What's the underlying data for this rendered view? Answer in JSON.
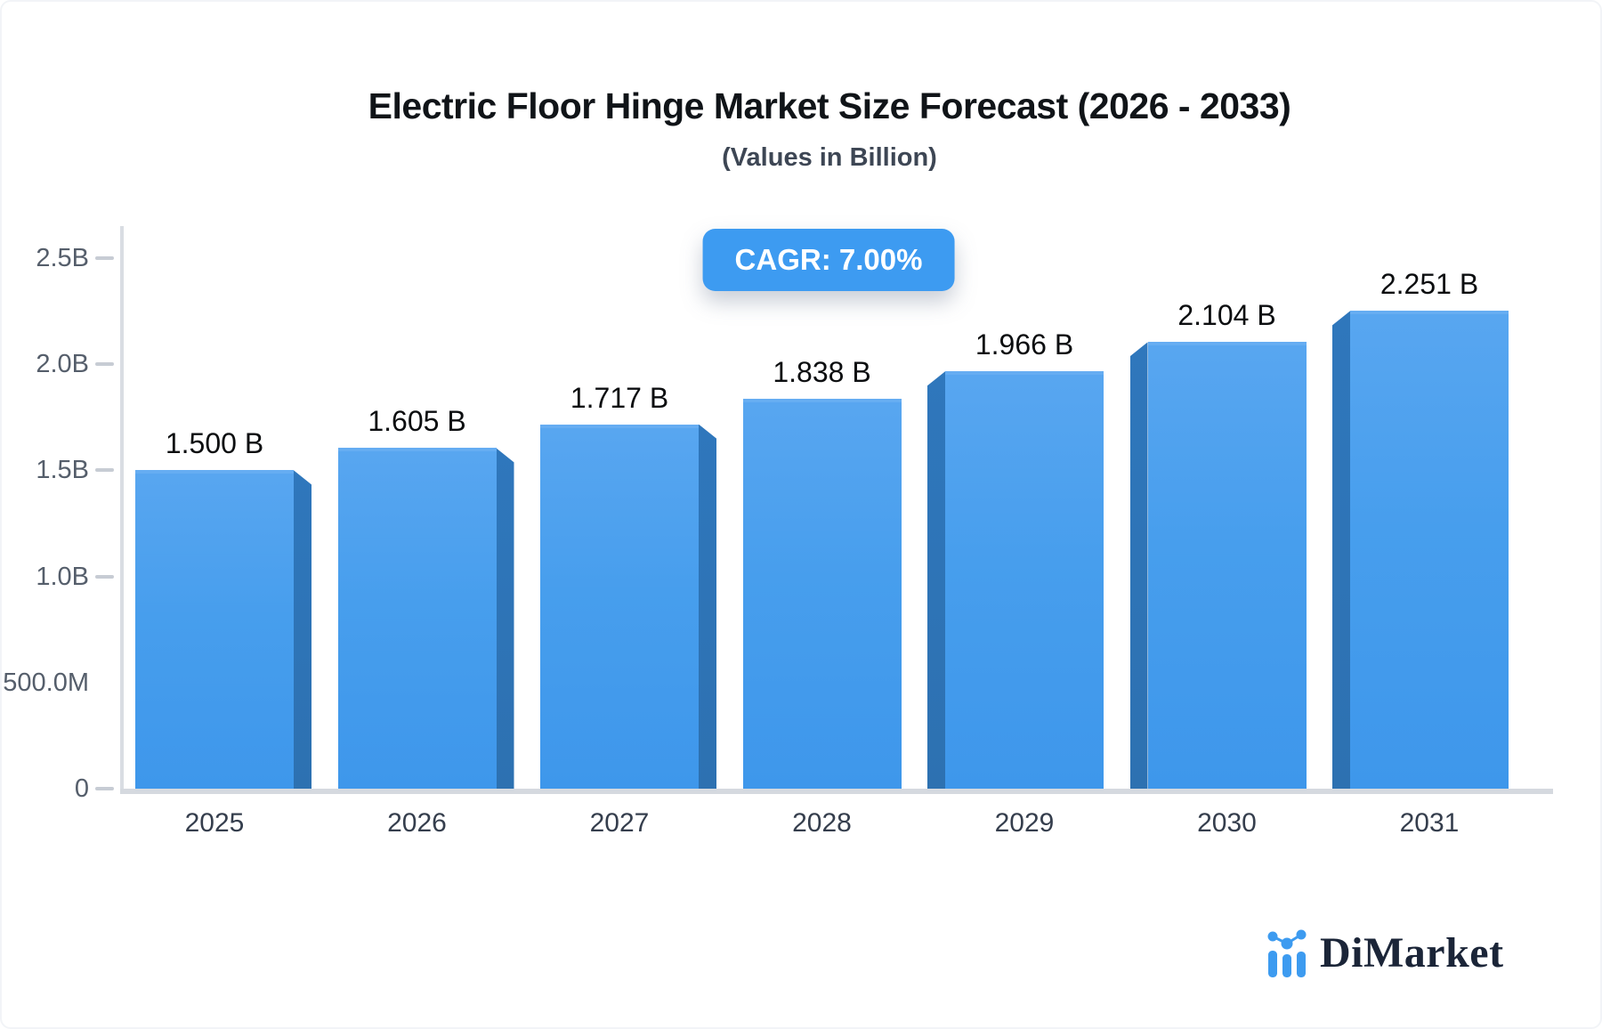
{
  "page": {
    "title": "Electric Floor Hinge Market Size Forecast (2026 - 2033)",
    "subtitle": "(Values in Billion)",
    "cagr_label": "CAGR: 7.00%",
    "brand": {
      "name": "DiMarket"
    }
  },
  "colors": {
    "accent_blue": "#3d9bf1",
    "bar_face_top": "#58a6f0",
    "bar_face_bottom": "#3e97eb",
    "bar_side": "#2e75b9",
    "axis_line": "#d9dde3",
    "tick_dash": "#c7ccd4",
    "title_text": "#101418",
    "subtitle_text": "#3d4654",
    "y_label_text": "#555e6b",
    "x_label_text": "#353e4d",
    "value_label_text": "#0c0e10",
    "logo_navy": "#1b2538",
    "logo_blue": "#3d9bf0"
  },
  "chart_data": {
    "type": "bar",
    "title": "Electric Floor Hinge Market Size Forecast (2026 - 2033)",
    "subtitle": "(Values in Billion)",
    "annotation": "CAGR: 7.00%",
    "categories": [
      "2025",
      "2026",
      "2027",
      "2028",
      "2029",
      "2030",
      "2031"
    ],
    "values": [
      1.5,
      1.605,
      1.717,
      1.838,
      1.966,
      2.104,
      2.251
    ],
    "value_labels": [
      "1.500 B",
      "1.605 B",
      "1.717 B",
      "1.838 B",
      "1.966 B",
      "2.104 B",
      "2.251 B"
    ],
    "ylim": [
      0,
      2.5
    ],
    "yticks": [
      {
        "label": "2.5B",
        "value": 2.5,
        "dash": true
      },
      {
        "label": "2.0B",
        "value": 2.0,
        "dash": true
      },
      {
        "label": "1.5B",
        "value": 1.5,
        "dash": true
      },
      {
        "label": "1.0B",
        "value": 1.0,
        "dash": true
      },
      {
        "label": "500.0M",
        "value": 0.5,
        "dash": false
      },
      {
        "label": "0",
        "value": 0,
        "dash": true
      }
    ],
    "grid": false,
    "legend": false
  }
}
